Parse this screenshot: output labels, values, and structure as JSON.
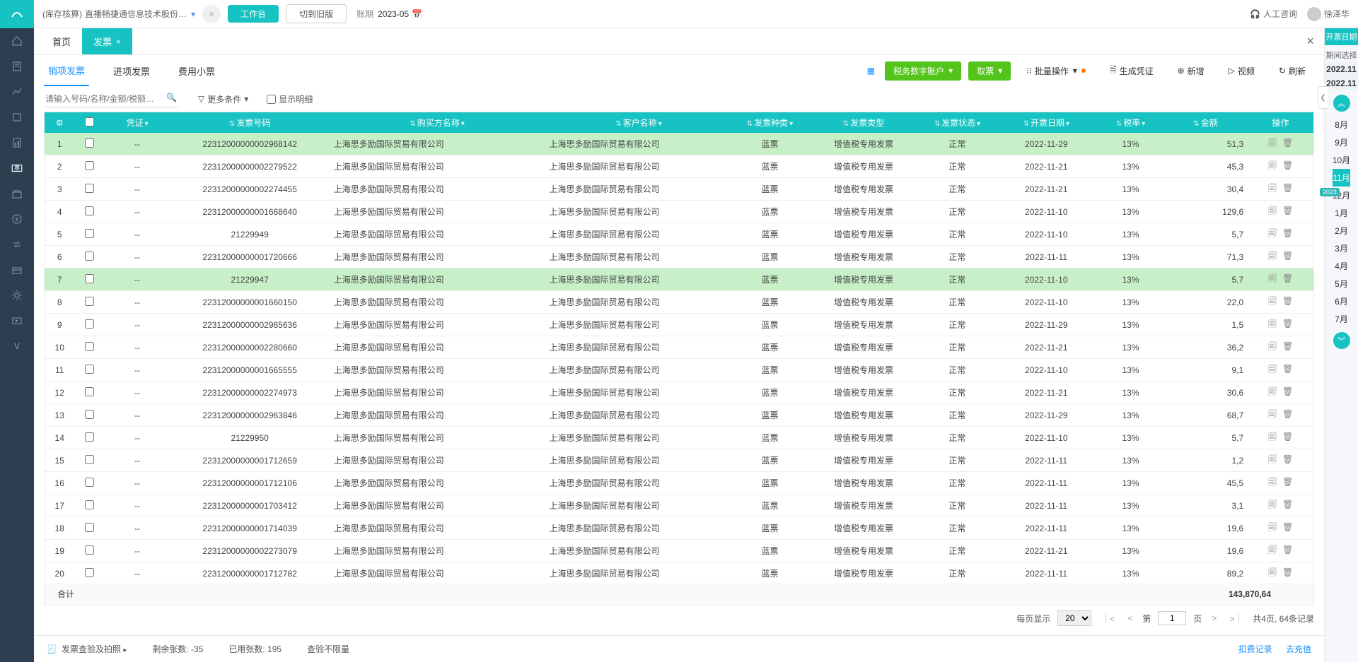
{
  "topbar": {
    "org_prefix": "(库存核算)",
    "org_name": "直播畅捷通信息技术股份…",
    "workbench": "工作台",
    "old_version": "切到旧版",
    "period_label": "账期",
    "period_value": "2023-05",
    "support": "人工咨询",
    "username": "徐泽华"
  },
  "tabs": {
    "home": "首页",
    "invoice": "发票"
  },
  "subtabs": {
    "sales": "销项发票",
    "purchase": "进项发票",
    "expense": "费用小票"
  },
  "toolbar": {
    "tax_acct": "税务数字账户",
    "get_inv": "取票",
    "batch": "批量操作",
    "gen_voucher": "生成凭证",
    "add": "新增",
    "video": "视频",
    "refresh": "刷新"
  },
  "filter": {
    "placeholder": "请输入号码/名称/金额/税额…",
    "more": "更多条件",
    "show_detail": "显示明细"
  },
  "columns": {
    "gear": "⚙",
    "voucher": "凭证",
    "inv_no": "发票号码",
    "buyer": "购买方名称",
    "cust": "客户名称",
    "inv_kind": "发票种类",
    "inv_type": "发票类型",
    "inv_status": "发票状态",
    "issue_date": "开票日期",
    "tax_rate": "税率",
    "amount": "金额",
    "ops": "操作"
  },
  "rows": [
    {
      "n": 1,
      "hl": true,
      "v": "--",
      "no": "22312000000002968142",
      "buyer": "上海思多励国际贸易有限公司",
      "cust": "上海思多励国际贸易有限公司",
      "kind": "蓝票",
      "type": "增值税专用发票",
      "status": "正常",
      "date": "2022-11-29",
      "rate": "13%",
      "amt": "51,3"
    },
    {
      "n": 2,
      "hl": false,
      "v": "--",
      "no": "22312000000002279522",
      "buyer": "上海思多励国际贸易有限公司",
      "cust": "上海思多励国际贸易有限公司",
      "kind": "蓝票",
      "type": "增值税专用发票",
      "status": "正常",
      "date": "2022-11-21",
      "rate": "13%",
      "amt": "45,3"
    },
    {
      "n": 3,
      "hl": false,
      "v": "--",
      "no": "22312000000002274455",
      "buyer": "上海思多励国际贸易有限公司",
      "cust": "上海思多励国际贸易有限公司",
      "kind": "蓝票",
      "type": "增值税专用发票",
      "status": "正常",
      "date": "2022-11-21",
      "rate": "13%",
      "amt": "30,4"
    },
    {
      "n": 4,
      "hl": false,
      "v": "--",
      "no": "22312000000001668640",
      "buyer": "上海思多励国际贸易有限公司",
      "cust": "上海思多励国际贸易有限公司",
      "kind": "蓝票",
      "type": "增值税专用发票",
      "status": "正常",
      "date": "2022-11-10",
      "rate": "13%",
      "amt": "129,6"
    },
    {
      "n": 5,
      "hl": false,
      "v": "--",
      "no": "21229949",
      "buyer": "上海思多励国际贸易有限公司",
      "cust": "上海思多励国际贸易有限公司",
      "kind": "蓝票",
      "type": "增值税专用发票",
      "status": "正常",
      "date": "2022-11-10",
      "rate": "13%",
      "amt": "5,7"
    },
    {
      "n": 6,
      "hl": false,
      "v": "--",
      "no": "22312000000001720666",
      "buyer": "上海思多励国际贸易有限公司",
      "cust": "上海思多励国际贸易有限公司",
      "kind": "蓝票",
      "type": "增值税专用发票",
      "status": "正常",
      "date": "2022-11-11",
      "rate": "13%",
      "amt": "71,3"
    },
    {
      "n": 7,
      "hl": true,
      "v": "--",
      "no": "21229947",
      "buyer": "上海思多励国际贸易有限公司",
      "cust": "上海思多励国际贸易有限公司",
      "kind": "蓝票",
      "type": "增值税专用发票",
      "status": "正常",
      "date": "2022-11-10",
      "rate": "13%",
      "amt": "5,7"
    },
    {
      "n": 8,
      "hl": false,
      "v": "--",
      "no": "22312000000001660150",
      "buyer": "上海思多励国际贸易有限公司",
      "cust": "上海思多励国际贸易有限公司",
      "kind": "蓝票",
      "type": "增值税专用发票",
      "status": "正常",
      "date": "2022-11-10",
      "rate": "13%",
      "amt": "22,0"
    },
    {
      "n": 9,
      "hl": false,
      "v": "--",
      "no": "22312000000002965636",
      "buyer": "上海思多励国际贸易有限公司",
      "cust": "上海思多励国际贸易有限公司",
      "kind": "蓝票",
      "type": "增值税专用发票",
      "status": "正常",
      "date": "2022-11-29",
      "rate": "13%",
      "amt": "1,5"
    },
    {
      "n": 10,
      "hl": false,
      "v": "--",
      "no": "22312000000002280660",
      "buyer": "上海思多励国际贸易有限公司",
      "cust": "上海思多励国际贸易有限公司",
      "kind": "蓝票",
      "type": "增值税专用发票",
      "status": "正常",
      "date": "2022-11-21",
      "rate": "13%",
      "amt": "36,2"
    },
    {
      "n": 11,
      "hl": false,
      "v": "--",
      "no": "22312000000001665555",
      "buyer": "上海思多励国际贸易有限公司",
      "cust": "上海思多励国际贸易有限公司",
      "kind": "蓝票",
      "type": "增值税专用发票",
      "status": "正常",
      "date": "2022-11-10",
      "rate": "13%",
      "amt": "9,1"
    },
    {
      "n": 12,
      "hl": false,
      "v": "--",
      "no": "22312000000002274973",
      "buyer": "上海思多励国际贸易有限公司",
      "cust": "上海思多励国际贸易有限公司",
      "kind": "蓝票",
      "type": "增值税专用发票",
      "status": "正常",
      "date": "2022-11-21",
      "rate": "13%",
      "amt": "30,6"
    },
    {
      "n": 13,
      "hl": false,
      "v": "--",
      "no": "22312000000002963846",
      "buyer": "上海思多励国际贸易有限公司",
      "cust": "上海思多励国际贸易有限公司",
      "kind": "蓝票",
      "type": "增值税专用发票",
      "status": "正常",
      "date": "2022-11-29",
      "rate": "13%",
      "amt": "68,7"
    },
    {
      "n": 14,
      "hl": false,
      "v": "--",
      "no": "21229950",
      "buyer": "上海思多励国际贸易有限公司",
      "cust": "上海思多励国际贸易有限公司",
      "kind": "蓝票",
      "type": "增值税专用发票",
      "status": "正常",
      "date": "2022-11-10",
      "rate": "13%",
      "amt": "5,7"
    },
    {
      "n": 15,
      "hl": false,
      "v": "--",
      "no": "22312000000001712659",
      "buyer": "上海思多励国际贸易有限公司",
      "cust": "上海思多励国际贸易有限公司",
      "kind": "蓝票",
      "type": "增值税专用发票",
      "status": "正常",
      "date": "2022-11-11",
      "rate": "13%",
      "amt": "1,2"
    },
    {
      "n": 16,
      "hl": false,
      "v": "--",
      "no": "22312000000001712106",
      "buyer": "上海思多励国际贸易有限公司",
      "cust": "上海思多励国际贸易有限公司",
      "kind": "蓝票",
      "type": "增值税专用发票",
      "status": "正常",
      "date": "2022-11-11",
      "rate": "13%",
      "amt": "45,5"
    },
    {
      "n": 17,
      "hl": false,
      "v": "--",
      "no": "22312000000001703412",
      "buyer": "上海思多励国际贸易有限公司",
      "cust": "上海思多励国际贸易有限公司",
      "kind": "蓝票",
      "type": "增值税专用发票",
      "status": "正常",
      "date": "2022-11-11",
      "rate": "13%",
      "amt": "3,1"
    },
    {
      "n": 18,
      "hl": false,
      "v": "--",
      "no": "22312000000001714039",
      "buyer": "上海思多励国际贸易有限公司",
      "cust": "上海思多励国际贸易有限公司",
      "kind": "蓝票",
      "type": "增值税专用发票",
      "status": "正常",
      "date": "2022-11-11",
      "rate": "13%",
      "amt": "19,6"
    },
    {
      "n": 19,
      "hl": false,
      "v": "--",
      "no": "22312000000002273079",
      "buyer": "上海思多励国际贸易有限公司",
      "cust": "上海思多励国际贸易有限公司",
      "kind": "蓝票",
      "type": "增值税专用发票",
      "status": "正常",
      "date": "2022-11-21",
      "rate": "13%",
      "amt": "19,6"
    },
    {
      "n": 20,
      "hl": false,
      "v": "--",
      "no": "22312000000001712782",
      "buyer": "上海思多励国际贸易有限公司",
      "cust": "上海思多励国际贸易有限公司",
      "kind": "蓝票",
      "type": "增值税专用发票",
      "status": "正常",
      "date": "2022-11-11",
      "rate": "13%",
      "amt": "89,2"
    }
  ],
  "total": {
    "label": "合计",
    "amount": "143,870,64"
  },
  "pager": {
    "per_page_label": "每页显示",
    "per_page": "20",
    "page_prefix": "第",
    "page": "1",
    "page_suffix": "页",
    "summary": "共4页, 64条记录"
  },
  "status": {
    "title": "发票查验及拍照",
    "remain_label": "剩余张数:",
    "remain": "-35",
    "used_label": "已用张数:",
    "used": "195",
    "unlimited": "查验不限量",
    "link1": "扣费记录",
    "link2": "去充值"
  },
  "rail": {
    "head": "开票日期",
    "period_label": "期间选择",
    "year1": "2022.11",
    "year2": "2022.11",
    "badge": "2023",
    "months": [
      "8月",
      "9月",
      "10月",
      "11月",
      "12月",
      "1月",
      "2月",
      "3月",
      "4月",
      "5月",
      "6月",
      "7月"
    ],
    "active_month_idx": 3
  },
  "col_widths": {
    "gear": 32,
    "chk": 32,
    "voucher": 70,
    "inv_no": 170,
    "buyer": 230,
    "cust": 200,
    "inv_kind": 80,
    "inv_type": 120,
    "inv_status": 80,
    "issue_date": 110,
    "tax_rate": 70,
    "amount": 90,
    "ops": 70
  }
}
